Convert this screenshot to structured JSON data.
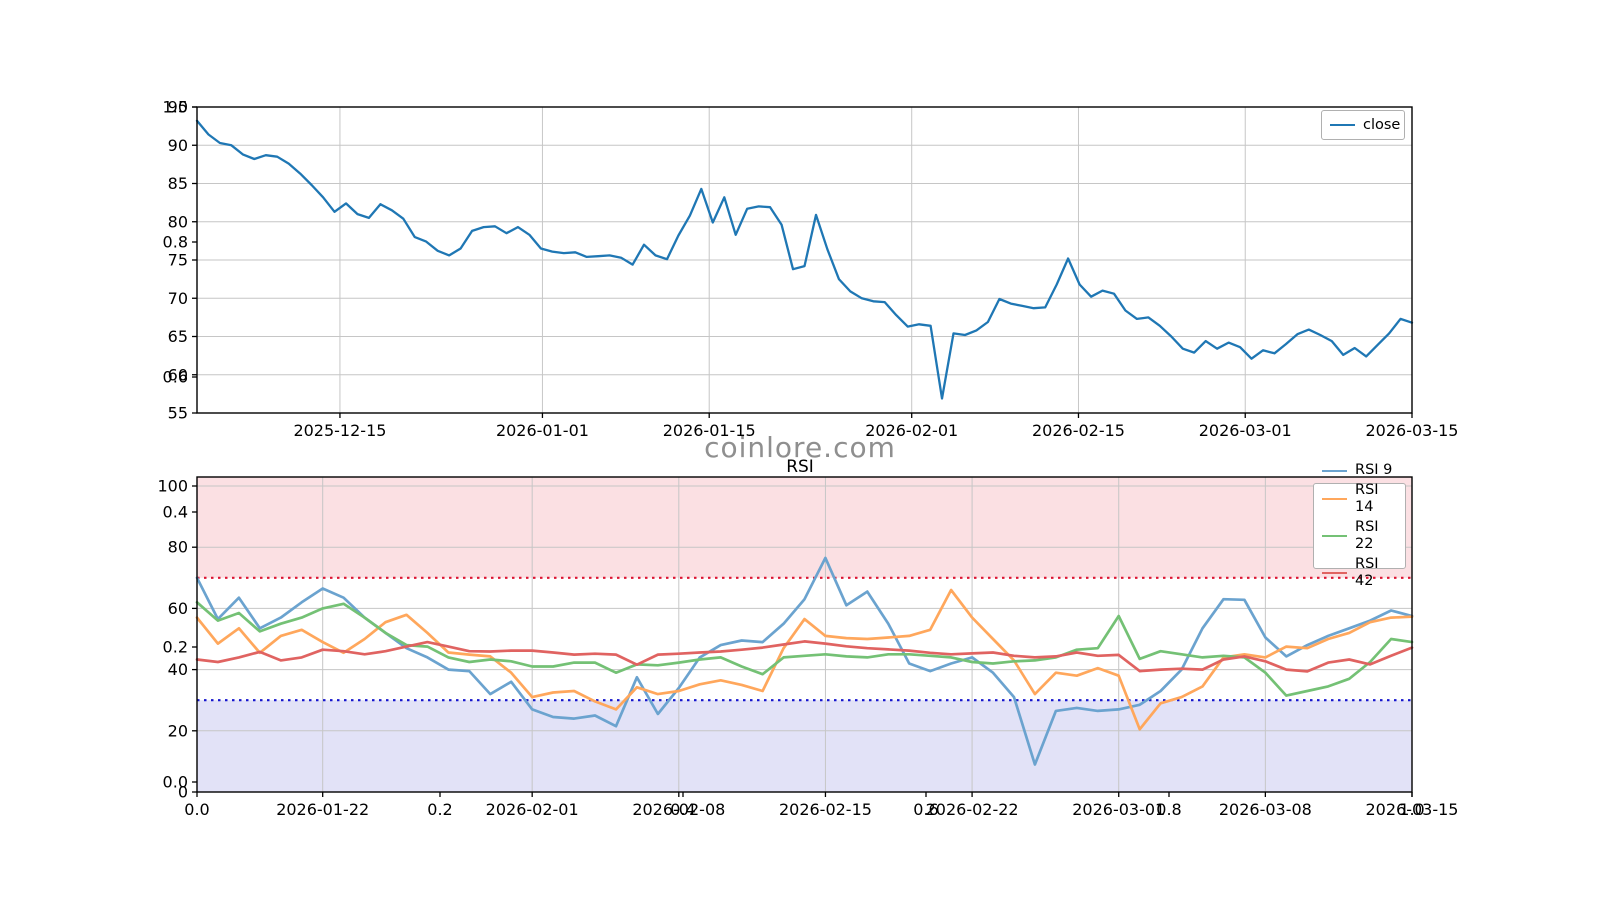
{
  "watermark": "coinlore.com",
  "chart_data": [
    {
      "type": "line",
      "title": "",
      "panel": "price",
      "ylim": [
        55,
        95
      ],
      "y_ticks": [
        95,
        90,
        85,
        80,
        75,
        70,
        65,
        60,
        55
      ],
      "total_days": 102,
      "x_tick_labels": [
        {
          "label": "2025-12-15",
          "day": 12
        },
        {
          "label": "2026-01-01",
          "day": 29
        },
        {
          "label": "2026-01-15",
          "day": 43
        },
        {
          "label": "2026-02-01",
          "day": 60
        },
        {
          "label": "2026-02-15",
          "day": 74
        },
        {
          "label": "2026-03-01",
          "day": 88
        },
        {
          "label": "2026-03-15",
          "day": 102
        }
      ],
      "legend_position": "upper right",
      "grid": true,
      "series": [
        {
          "name": "close",
          "color": "#1f77b4",
          "values": [
            93.2,
            91.4,
            90.3,
            90.0,
            88.8,
            88.2,
            88.7,
            88.5,
            87.6,
            86.3,
            84.8,
            83.2,
            81.3,
            82.4,
            81.0,
            80.5,
            82.3,
            81.5,
            80.4,
            78.0,
            77.4,
            76.2,
            75.6,
            76.5,
            78.8,
            79.3,
            79.4,
            78.5,
            79.3,
            78.3,
            76.5,
            76.1,
            75.9,
            76.0,
            75.4,
            75.5,
            75.6,
            75.3,
            74.4,
            77.0,
            75.6,
            75.1,
            78.2,
            80.8,
            84.3,
            79.9,
            83.2,
            78.3,
            81.7,
            82.0,
            81.9,
            79.6,
            73.8,
            74.2,
            80.9,
            76.4,
            72.5,
            70.9,
            70.0,
            69.6,
            69.5,
            67.8,
            66.3,
            66.6,
            66.4,
            56.9,
            65.4,
            65.2,
            65.8,
            66.9,
            69.9,
            69.3,
            69.0,
            68.7,
            68.8,
            71.8,
            75.2,
            71.8,
            70.2,
            71.0,
            70.6,
            68.4,
            67.3,
            67.5,
            66.4,
            65.0,
            63.4,
            62.9,
            64.4,
            63.4,
            64.2,
            63.6,
            62.1,
            63.2,
            62.8,
            64.0,
            65.3,
            65.9,
            65.2,
            64.4,
            62.6,
            63.5,
            62.4,
            63.9,
            65.4,
            67.3,
            66.8
          ]
        }
      ]
    },
    {
      "type": "line",
      "title": "RSI",
      "panel": "rsi",
      "ylim": [
        0,
        100
      ],
      "y_ticks": [
        100,
        80,
        60,
        40,
        20,
        0
      ],
      "total_days": 58,
      "x_tick_labels": [
        {
          "label": "2026-01-22",
          "day": 6
        },
        {
          "label": "2026-02-01",
          "day": 16
        },
        {
          "label": "2026-02-08",
          "day": 23
        },
        {
          "label": "2026-02-15",
          "day": 30
        },
        {
          "label": "2026-02-22",
          "day": 37
        },
        {
          "label": "2026-03-01",
          "day": 44
        },
        {
          "label": "2026-03-08",
          "day": 51
        },
        {
          "label": "2026-03-15",
          "day": 58
        }
      ],
      "legend_position": "upper right",
      "grid": true,
      "overbought": {
        "level": 70,
        "line_color": "#dc1432",
        "fill_color": "#fbe0e3"
      },
      "oversold": {
        "level": 30,
        "line_color": "#1414cd",
        "fill_color": "#e2e2f7"
      },
      "series": [
        {
          "name": "RSI 9",
          "color": "#6ba3cf",
          "values": [
            70,
            56.5,
            63.5,
            53.5,
            57,
            62,
            66.5,
            63.5,
            57,
            52,
            47,
            44,
            40,
            39.5,
            32,
            36,
            27,
            24.5,
            24,
            25,
            21.5,
            37.5,
            25.5,
            34,
            44,
            48,
            49.5,
            49,
            55,
            63,
            76.5,
            61,
            65.5,
            55,
            42,
            39.5,
            42,
            44,
            39,
            31,
            9,
            26.5,
            27.5,
            26.5,
            27,
            28.5,
            33,
            40,
            53.5,
            63,
            62.8,
            50.5,
            44.3,
            48,
            51,
            53.5,
            56,
            59.3,
            57.5
          ]
        },
        {
          "name": "RSI 14",
          "color": "#ffa75c",
          "values": [
            57,
            48.5,
            53.5,
            45.5,
            51,
            53,
            49,
            45.5,
            50,
            55.5,
            57.9,
            52,
            45.6,
            44.9,
            44.3,
            39,
            31,
            32.5,
            33,
            29.6,
            27,
            34.2,
            32,
            33,
            35.2,
            36.5,
            35,
            33,
            47,
            56.5,
            51,
            50.3,
            50,
            50.5,
            51,
            53,
            66,
            57,
            50,
            43,
            32,
            39,
            38,
            40.5,
            38,
            20.5,
            29,
            31,
            34.5,
            44,
            45,
            44,
            47.5,
            47,
            50,
            52,
            55.5,
            57,
            57.3
          ]
        },
        {
          "name": "RSI 22",
          "color": "#74c175",
          "values": [
            62,
            56,
            58.5,
            52.5,
            55,
            57,
            60,
            61.5,
            57,
            52,
            48,
            47.5,
            44,
            42.5,
            43.3,
            42.7,
            41,
            41,
            42.3,
            42.3,
            39,
            41.7,
            41.4,
            42.3,
            43.3,
            44,
            41,
            38.5,
            44,
            44.5,
            45,
            44.3,
            44,
            45,
            45,
            44.5,
            44,
            42.5,
            42,
            42.7,
            43,
            44,
            46.5,
            47,
            57.5,
            43.5,
            46,
            45,
            44,
            44.5,
            44,
            39,
            31.5,
            33,
            34.5,
            37,
            42.5,
            50,
            49
          ]
        },
        {
          "name": "RSI 42",
          "color": "#e06361",
          "values": [
            43.3,
            42.5,
            44,
            45.8,
            43,
            44,
            46.5,
            46,
            45,
            46,
            47.5,
            49,
            47.5,
            46,
            45.9,
            46.2,
            46.2,
            45.6,
            44.9,
            45.2,
            44.9,
            41.6,
            44.9,
            45.2,
            45.6,
            45.9,
            46.5,
            47.2,
            48.2,
            49.2,
            48.5,
            47.6,
            47,
            46.6,
            46.2,
            45.5,
            45,
            45.3,
            45.6,
            44.5,
            44,
            44.3,
            45.6,
            44.5,
            44.8,
            39.5,
            40,
            40.3,
            40,
            43.3,
            44.3,
            42.7,
            40,
            39.4,
            42.3,
            43.3,
            41.7,
            44.5,
            47.2
          ]
        }
      ]
    }
  ],
  "artifact_axis": {
    "x_tick_labels": [
      "0.0",
      "0.2",
      "0.4",
      "0.6",
      "0.8",
      "1.0"
    ],
    "y_tick_labels": [
      "1.0",
      "0.8",
      "0.6",
      "0.4",
      "0.2",
      "0.0"
    ]
  },
  "style": {
    "grid_color": "#c6c6c6",
    "spine_color": "#000000",
    "watermark_color": "#8f8f8f"
  }
}
